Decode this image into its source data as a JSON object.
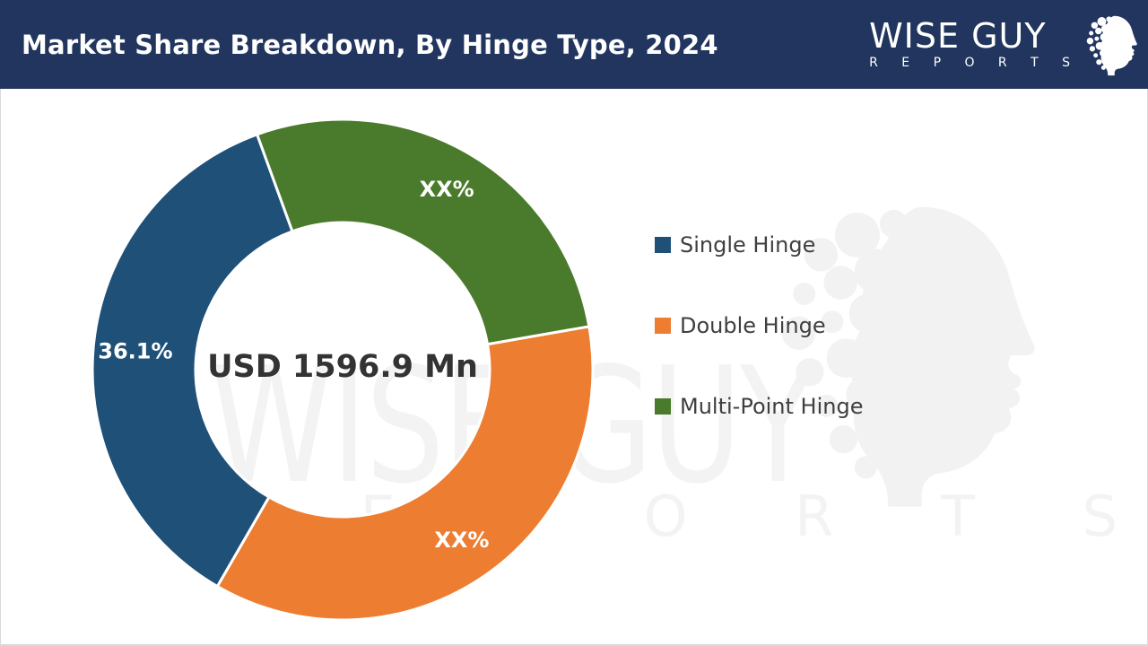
{
  "header": {
    "title": "Market Share Breakdown, By Hinge Type, 2024",
    "bg_color": "#21355E",
    "logo": {
      "line1": "WISE GUY",
      "line2": "R E P O R T S"
    }
  },
  "watermark": {
    "line1": "WISE GUY",
    "line2": "R E P O R T S"
  },
  "chart_data": {
    "type": "pie",
    "subtype": "donut",
    "title": "Market Share Breakdown, By Hinge Type, 2024",
    "center_label": "USD 1596.9 Mn",
    "start_angle_deg_clockwise_from_top": -20,
    "draw_order": [
      "Multi-Point Hinge",
      "Double Hinge",
      "Single Hinge"
    ],
    "slices": [
      {
        "name": "Single Hinge",
        "pct": 36.1,
        "display_label": "36.1%",
        "color": "#1F5077"
      },
      {
        "name": "Double Hinge",
        "pct": 36.1,
        "display_label": "XX%",
        "color": "#ED7D31"
      },
      {
        "name": "Multi-Point Hinge",
        "pct": 27.8,
        "display_label": "XX%",
        "color": "#4A7A2B"
      }
    ],
    "legend": [
      {
        "label": "Single Hinge",
        "color": "#1F5077"
      },
      {
        "label": "Double Hinge",
        "color": "#ED7D31"
      },
      {
        "label": "Multi-Point Hinge",
        "color": "#4A7A2B"
      }
    ],
    "legend_position": "right"
  }
}
